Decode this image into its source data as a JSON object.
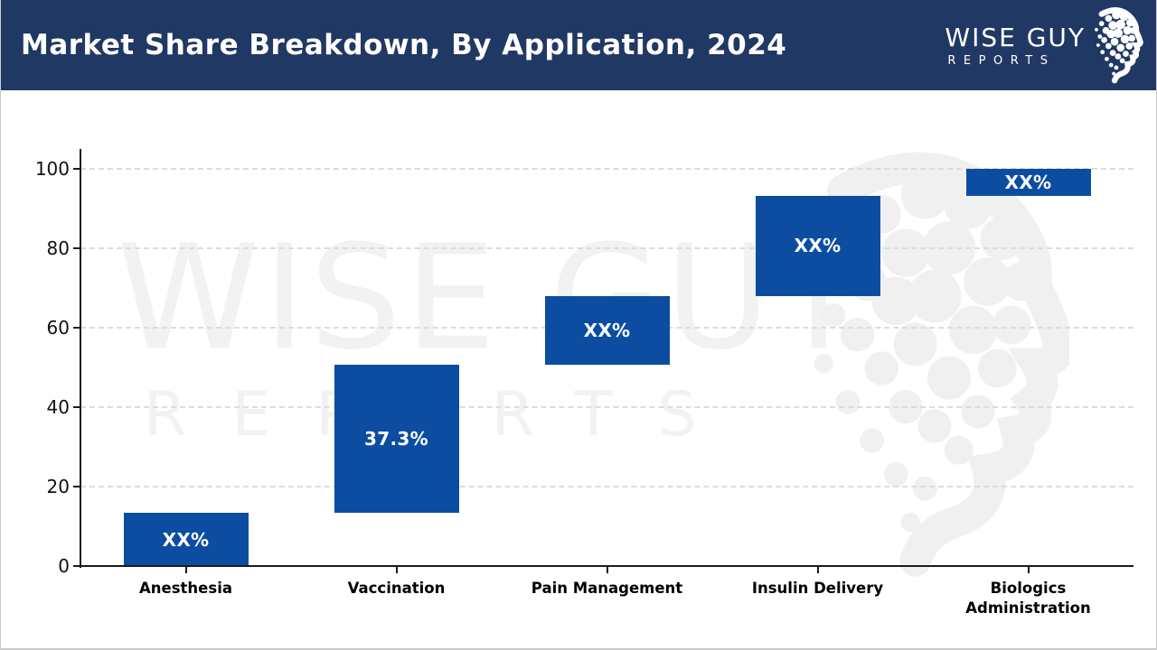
{
  "page": {
    "background_color": "#ffffff",
    "border_color": "#cccccc"
  },
  "header": {
    "title": "Market Share Breakdown, By Application, 2024",
    "background_color": "#203864",
    "logo": {
      "line1": "WISE GUY",
      "line2": "REPORTS",
      "icon": "dotted-face-profile"
    }
  },
  "watermark": {
    "line1": "WISE GUY",
    "line2": "REPORTS"
  },
  "chart_data": {
    "type": "bar",
    "subtype": "waterfall",
    "title": "Market Share Breakdown, By Application, 2024",
    "categories": [
      "Anesthesia",
      "Vaccination",
      "Pain Management",
      "Insulin Delivery",
      "Biologics Administration"
    ],
    "segments": [
      {
        "category": "Anesthesia",
        "label_lines": [
          "Anesthesia"
        ],
        "start": 0,
        "end": 13.4,
        "value_label": "XX%"
      },
      {
        "category": "Vaccination",
        "label_lines": [
          "Vaccination"
        ],
        "start": 13.4,
        "end": 50.7,
        "value_label": "37.3%"
      },
      {
        "category": "Pain Management",
        "label_lines": [
          "Pain Management"
        ],
        "start": 50.7,
        "end": 68.0,
        "value_label": "XX%"
      },
      {
        "category": "Insulin Delivery",
        "label_lines": [
          "Insulin Delivery"
        ],
        "start": 68.0,
        "end": 93.2,
        "value_label": "XX%"
      },
      {
        "category": "Biologics Administration",
        "label_lines": [
          "Biologics",
          "Administration"
        ],
        "start": 93.2,
        "end": 100.0,
        "value_label": "XX%"
      }
    ],
    "yticks": [
      "0",
      "20",
      "40",
      "60",
      "80",
      "100"
    ],
    "ylim": [
      0,
      105
    ],
    "bar_color": "#0d4da1",
    "value_label_color": "#ffffff",
    "axis_color": "#1a1a1a",
    "grid": {
      "horizontal": true,
      "style": "dashed",
      "color": "#dcdcdc"
    },
    "legend_position": "none"
  }
}
